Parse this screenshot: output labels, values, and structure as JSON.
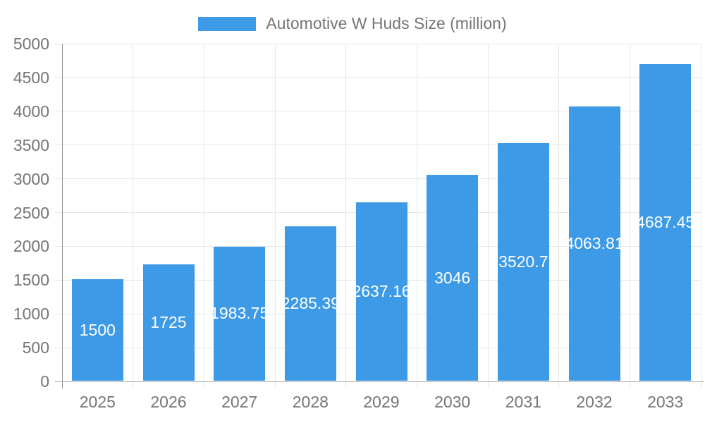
{
  "legend": {
    "label": "Automotive W Huds Size (million)"
  },
  "chart_data": {
    "type": "bar",
    "title": "Automotive W Huds Size (million)",
    "categories": [
      "2025",
      "2026",
      "2027",
      "2028",
      "2029",
      "2030",
      "2031",
      "2032",
      "2033"
    ],
    "values": [
      1500,
      1725,
      1983.75,
      2285.39,
      2637.16,
      3046,
      3520.7,
      4063.81,
      4687.45
    ],
    "bar_labels": [
      "1500",
      "1725",
      "1983.75",
      "2285.39",
      "2637.16",
      "3046",
      "3520.7",
      "4063.81",
      "4687.45"
    ],
    "y_ticks": [
      "0",
      "500",
      "1000",
      "1500",
      "2000",
      "2500",
      "3000",
      "3500",
      "4000",
      "4500",
      "5000"
    ],
    "ylim": [
      0,
      5000
    ],
    "ytick_step": 500,
    "xlabel": "",
    "ylabel": "",
    "grid": true,
    "legend_position": "top",
    "colors": {
      "bar": "#3d9ae7",
      "grid": "#e6e6e6",
      "axis": "#8f8f8f",
      "baseline": "#aaaaaa",
      "tick_text": "#757575",
      "bar_label_text": "#ffffff"
    }
  }
}
